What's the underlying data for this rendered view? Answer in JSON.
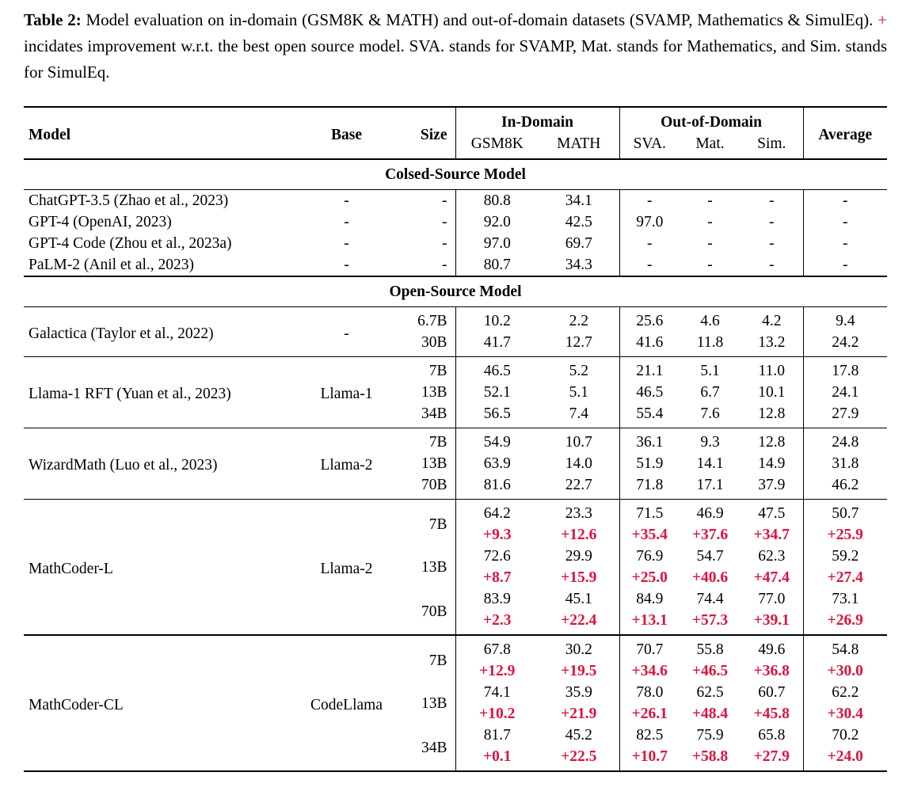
{
  "colors": {
    "improvement": "#DC143C",
    "text": "#000000",
    "rule": "#000000"
  },
  "caption": {
    "label": "Table 2:",
    "part1": "Model evaluation on in-domain (GSM8K & MATH) and out-of-domain datasets (SVAMP, Mathematics & SimulEq).",
    "plus": "+",
    "part2": "incidates improvement w.r.t. the best open source model. SVA. stands for SVAMP, Mat. stands for Mathematics, and Sim. stands for SimulEq."
  },
  "table": {
    "columns": {
      "model": "Model",
      "base": "Base",
      "size": "Size",
      "in_domain": "In-Domain",
      "out_of_domain": "Out-of-Domain",
      "average": "Average",
      "in_domain_sub": [
        "GSM8K",
        "MATH"
      ],
      "out_of_domain_sub": [
        "SVA.",
        "Mat.",
        "Sim."
      ]
    },
    "sections": [
      {
        "title": "Colsed-Source Model",
        "groups": [
          {
            "model": "ChatGPT-3.5 (Zhao et al., 2023)",
            "base": "-",
            "rows": [
              {
                "size": "-",
                "values": [
                  "80.8",
                  "34.1",
                  "-",
                  "-",
                  "-",
                  "-"
                ]
              }
            ]
          },
          {
            "model": "GPT-4 (OpenAI, 2023)",
            "base": "-",
            "rows": [
              {
                "size": "-",
                "values": [
                  "92.0",
                  "42.5",
                  "97.0",
                  "-",
                  "-",
                  "-"
                ]
              }
            ]
          },
          {
            "model": "GPT-4 Code (Zhou et al., 2023a)",
            "base": "-",
            "rows": [
              {
                "size": "-",
                "values": [
                  "97.0",
                  "69.7",
                  "-",
                  "-",
                  "-",
                  "-"
                ]
              }
            ]
          },
          {
            "model": "PaLM-2 (Anil et al., 2023)",
            "base": "-",
            "rows": [
              {
                "size": "-",
                "values": [
                  "80.7",
                  "34.3",
                  "-",
                  "-",
                  "-",
                  "-"
                ]
              }
            ]
          }
        ]
      },
      {
        "title": "Open-Source Model",
        "groups": [
          {
            "model": "Galactica (Taylor et al., 2022)",
            "base": "-",
            "rows": [
              {
                "size": "6.7B",
                "values": [
                  "10.2",
                  "2.2",
                  "25.6",
                  "4.6",
                  "4.2",
                  "9.4"
                ]
              },
              {
                "size": "30B",
                "values": [
                  "41.7",
                  "12.7",
                  "41.6",
                  "11.8",
                  "13.2",
                  "24.2"
                ]
              }
            ]
          },
          {
            "model": "Llama-1 RFT (Yuan et al., 2023)",
            "base": "Llama-1",
            "rows": [
              {
                "size": "7B",
                "values": [
                  "46.5",
                  "5.2",
                  "21.1",
                  "5.1",
                  "11.0",
                  "17.8"
                ]
              },
              {
                "size": "13B",
                "values": [
                  "52.1",
                  "5.1",
                  "46.5",
                  "6.7",
                  "10.1",
                  "24.1"
                ]
              },
              {
                "size": "34B",
                "values": [
                  "56.5",
                  "7.4",
                  "55.4",
                  "7.6",
                  "12.8",
                  "27.9"
                ]
              }
            ]
          },
          {
            "model": "WizardMath (Luo et al., 2023)",
            "base": "Llama-2",
            "rows": [
              {
                "size": "7B",
                "values": [
                  "54.9",
                  "10.7",
                  "36.1",
                  "9.3",
                  "12.8",
                  "24.8"
                ]
              },
              {
                "size": "13B",
                "values": [
                  "63.9",
                  "14.0",
                  "51.9",
                  "14.1",
                  "14.9",
                  "31.8"
                ]
              },
              {
                "size": "70B",
                "values": [
                  "81.6",
                  "22.7",
                  "71.8",
                  "17.1",
                  "37.9",
                  "46.2"
                ]
              }
            ]
          },
          {
            "model": "MathCoder-L",
            "base": "Llama-2",
            "rows": [
              {
                "size": "7B",
                "values": [
                  "64.2",
                  "23.3",
                  "71.5",
                  "46.9",
                  "47.5",
                  "50.7"
                ],
                "improvements": [
                  "+9.3",
                  "+12.6",
                  "+35.4",
                  "+37.6",
                  "+34.7",
                  "+25.9"
                ]
              },
              {
                "size": "13B",
                "values": [
                  "72.6",
                  "29.9",
                  "76.9",
                  "54.7",
                  "62.3",
                  "59.2"
                ],
                "improvements": [
                  "+8.7",
                  "+15.9",
                  "+25.0",
                  "+40.6",
                  "+47.4",
                  "+27.4"
                ]
              },
              {
                "size": "70B",
                "values": [
                  "83.9",
                  "45.1",
                  "84.9",
                  "74.4",
                  "77.0",
                  "73.1"
                ],
                "improvements": [
                  "+2.3",
                  "+22.4",
                  "+13.1",
                  "+57.3",
                  "+39.1",
                  "+26.9"
                ]
              }
            ]
          },
          {
            "model": "MathCoder-CL",
            "base": "CodeLlama",
            "heavy_rule": true,
            "rows": [
              {
                "size": "7B",
                "values": [
                  "67.8",
                  "30.2",
                  "70.7",
                  "55.8",
                  "49.6",
                  "54.8"
                ],
                "improvements": [
                  "+12.9",
                  "+19.5",
                  "+34.6",
                  "+46.5",
                  "+36.8",
                  "+30.0"
                ]
              },
              {
                "size": "13B",
                "values": [
                  "74.1",
                  "35.9",
                  "78.0",
                  "62.5",
                  "60.7",
                  "62.2"
                ],
                "improvements": [
                  "+10.2",
                  "+21.9",
                  "+26.1",
                  "+48.4",
                  "+45.8",
                  "+30.4"
                ]
              },
              {
                "size": "34B",
                "values": [
                  "81.7",
                  "45.2",
                  "82.5",
                  "75.9",
                  "65.8",
                  "70.2"
                ],
                "improvements": [
                  "+0.1",
                  "+22.5",
                  "+10.7",
                  "+58.8",
                  "+27.9",
                  "+24.0"
                ]
              }
            ]
          }
        ]
      }
    ]
  }
}
